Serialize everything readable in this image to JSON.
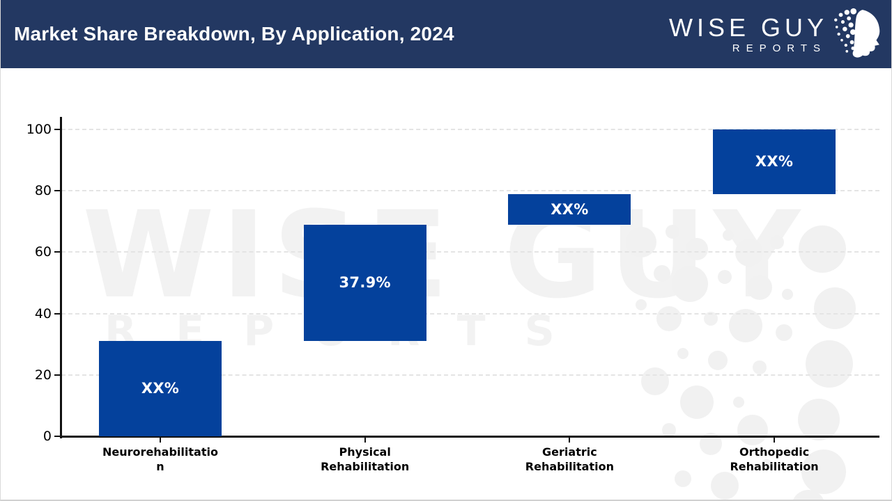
{
  "header": {
    "title": "Market Share Breakdown, By Application, 2024",
    "bg_color": "#233862",
    "logo": {
      "line1": "WISE GUY",
      "line2": "REPORTS"
    }
  },
  "watermark": {
    "line1": "WISE GUY",
    "line2": "REPORTS"
  },
  "chart_data": {
    "type": "bar",
    "subtype": "waterfall",
    "title": "Market Share Breakdown, By Application, 2024",
    "xlabel": "",
    "ylabel": "",
    "categories": [
      "Neurorehabilitation",
      "Physical Rehabilitation",
      "Geriatric Rehabilitation",
      "Orthopedic Rehabilitation"
    ],
    "category_display_lines": [
      [
        "Neurorehabilitatio",
        "n"
      ],
      [
        "Physical",
        "Rehabilitation"
      ],
      [
        "Geriatric",
        "Rehabilitation"
      ],
      [
        "Orthopedic",
        "Rehabilitation"
      ]
    ],
    "segments": [
      {
        "category": "Neurorehabilitation",
        "start": 0,
        "end": 31.1,
        "value": 31.1,
        "label": "XX%"
      },
      {
        "category": "Physical Rehabilitation",
        "start": 31.1,
        "end": 69.0,
        "value": 37.9,
        "label": "37.9%"
      },
      {
        "category": "Geriatric Rehabilitation",
        "start": 69.0,
        "end": 79.0,
        "value": 10.0,
        "label": "XX%"
      },
      {
        "category": "Orthopedic Rehabilitation",
        "start": 79.0,
        "end": 100.0,
        "value": 21.0,
        "label": "XX%"
      }
    ],
    "yticks": [
      0,
      20,
      40,
      60,
      80,
      100
    ],
    "ylim": [
      0,
      104
    ],
    "grid": "horizontal-dashed",
    "legend": "none",
    "colors": {
      "bar": "#04419c",
      "bar_label": "#ffffff",
      "axis": "#111111",
      "gridline": "#e4e4e4",
      "header_bg": "#233862",
      "watermark": "#f2f2f2"
    }
  }
}
